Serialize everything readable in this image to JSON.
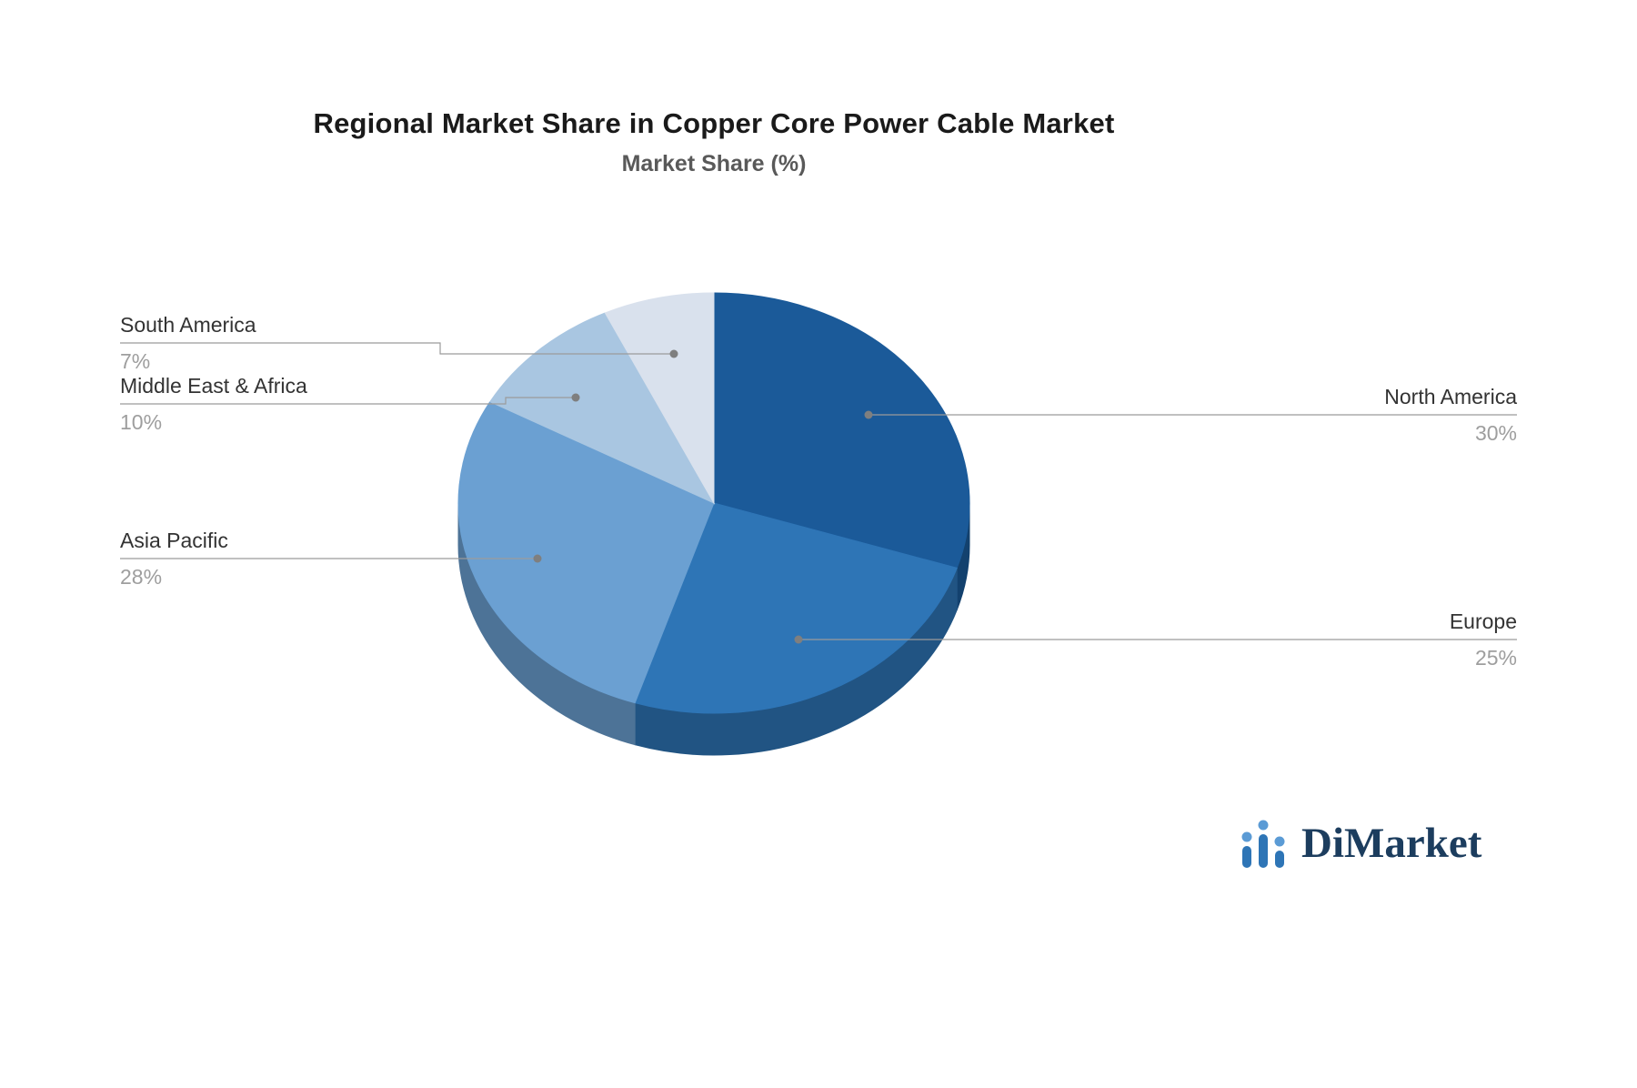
{
  "title": "Regional Market Share in Copper Core Power Cable Market",
  "subtitle": "Market Share (%)",
  "watermark": {
    "brand": "DiMarket"
  },
  "chart_data": {
    "type": "pie",
    "title": "Regional Market Share in Copper Core Power Cable Market",
    "subtitle": "Market Share (%)",
    "unit": "%",
    "order": "clockwise-from-12-oclock",
    "legend_position": "none",
    "style": "3d-pie",
    "labels": [
      "North America",
      "Europe",
      "Asia Pacific",
      "Middle East & Africa",
      "South America"
    ],
    "values": [
      30,
      25,
      28,
      10,
      7
    ],
    "value_labels": [
      "30%",
      "25%",
      "28%",
      "10%",
      "7%"
    ],
    "colors": [
      "#1b5a99",
      "#2e75b6",
      "#6ba0d2",
      "#a9c6e1",
      "#d9e1ed"
    ],
    "leader_line_color": "#9b9b9b",
    "label_text_color": "#333333",
    "value_text_color": "#9e9e9e"
  }
}
